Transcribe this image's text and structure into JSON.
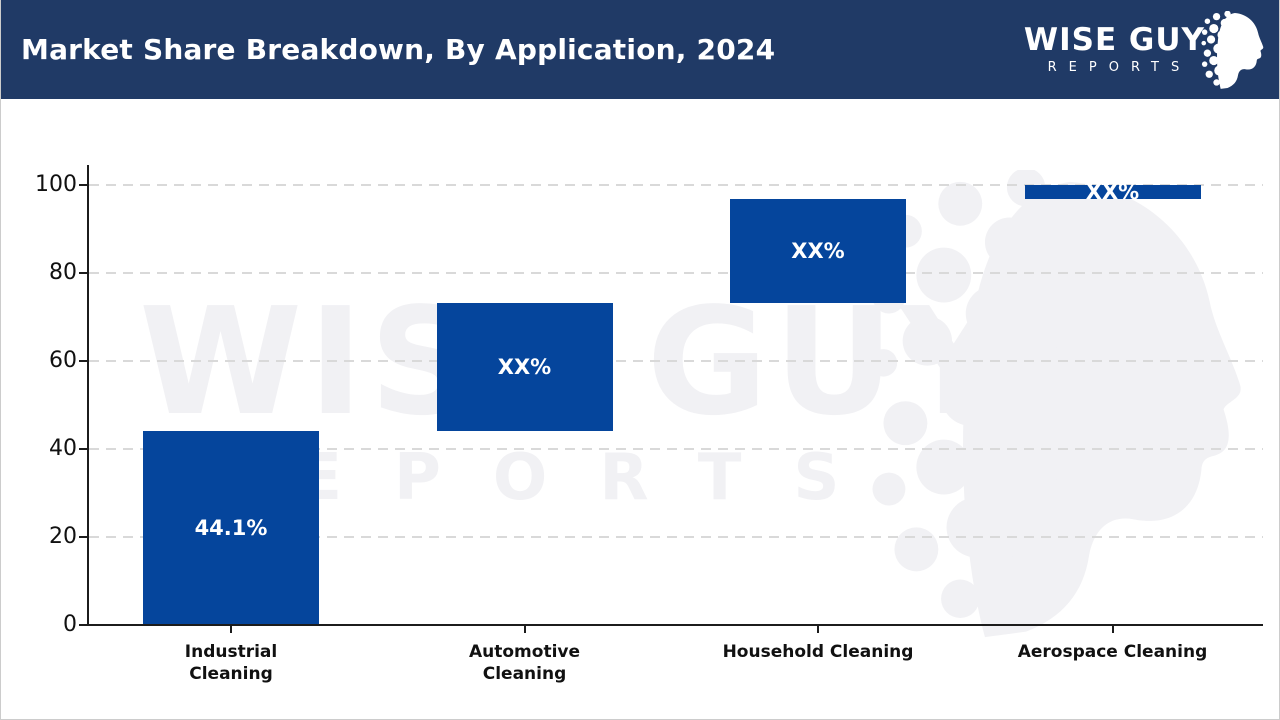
{
  "header": {
    "title": "Market Share Breakdown, By Application, 2024",
    "bg_color": "#203a66",
    "logo": {
      "wordmark": "WISE GUY",
      "subtext": "REPORTS"
    }
  },
  "watermark": {
    "line1": "WISE GUY",
    "line2": "REPORTS"
  },
  "chart_data": {
    "type": "bar",
    "subtype": "waterfall",
    "title": "Market Share Breakdown, By Application, 2024",
    "unit": "%",
    "ylim": [
      0,
      100
    ],
    "yticks": [
      0,
      20,
      40,
      60,
      80,
      100
    ],
    "grid": "horizontal-dashed",
    "bar_color": "#05459c",
    "categories": [
      "Industrial Cleaning",
      "Automotive Cleaning",
      "Household Cleaning",
      "Aerospace Cleaning"
    ],
    "category_label_lines": [
      [
        "Industrial",
        "Cleaning"
      ],
      [
        "Automotive",
        "Cleaning"
      ],
      [
        "Household Cleaning"
      ],
      [
        "Aerospace Cleaning"
      ]
    ],
    "segments": [
      {
        "category": "Industrial Cleaning",
        "start": 0,
        "end": 44.1,
        "value": 44.1,
        "label": "44.1%"
      },
      {
        "category": "Automotive Cleaning",
        "start": 44.1,
        "end": 73.2,
        "value": 29.1,
        "label": "XX%"
      },
      {
        "category": "Household Cleaning",
        "start": 73.2,
        "end": 96.8,
        "value": 23.6,
        "label": "XX%"
      },
      {
        "category": "Aerospace Cleaning",
        "start": 96.8,
        "end": 100,
        "value": 3.2,
        "label": "XX%"
      }
    ]
  }
}
